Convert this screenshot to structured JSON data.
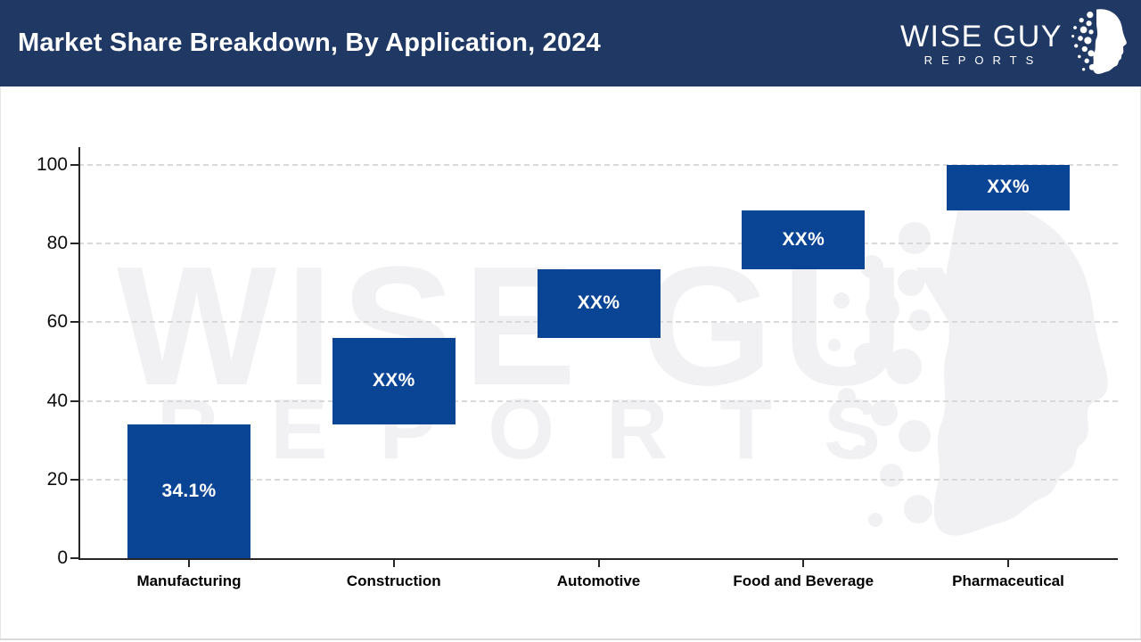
{
  "header": {
    "title": "Market Share Breakdown, By Application, 2024",
    "logo": {
      "line1": "WISE GUY",
      "line2": "REPORTS",
      "head_icon": "dotted-face-profile-icon"
    }
  },
  "watermark": {
    "line1": "WISE GUY",
    "line2": "REPORTS"
  },
  "chart_data": {
    "type": "bar",
    "subtype": "waterfall",
    "title": "Market Share Breakdown, By Application, 2024",
    "categories": [
      "Manufacturing",
      "Construction",
      "Automotive",
      "Food and Beverage",
      "Pharmaceutical"
    ],
    "segments": [
      {
        "category": "Manufacturing",
        "start": 0,
        "end": 34.1,
        "label": "34.1%"
      },
      {
        "category": "Construction",
        "start": 34.1,
        "end": 56.0,
        "label": "XX%"
      },
      {
        "category": "Automotive",
        "start": 56.0,
        "end": 73.5,
        "label": "XX%"
      },
      {
        "category": "Food and Beverage",
        "start": 73.5,
        "end": 88.5,
        "label": "XX%"
      },
      {
        "category": "Pharmaceutical",
        "start": 88.5,
        "end": 100,
        "label": "XX%"
      }
    ],
    "ylim": [
      0,
      100
    ],
    "yticks": [
      0,
      20,
      40,
      60,
      80,
      100
    ],
    "xlabel": "",
    "ylabel": "",
    "grid": true,
    "grid_style": "dashed",
    "legend": "none"
  },
  "colors": {
    "header_bg": "#1f3864",
    "bar": "#0a4494",
    "bar_label": "#ffffff",
    "grid": "#d9d9d9",
    "axis": "#262626",
    "watermark": "#f1f1f4",
    "title_text": "#ffffff"
  }
}
